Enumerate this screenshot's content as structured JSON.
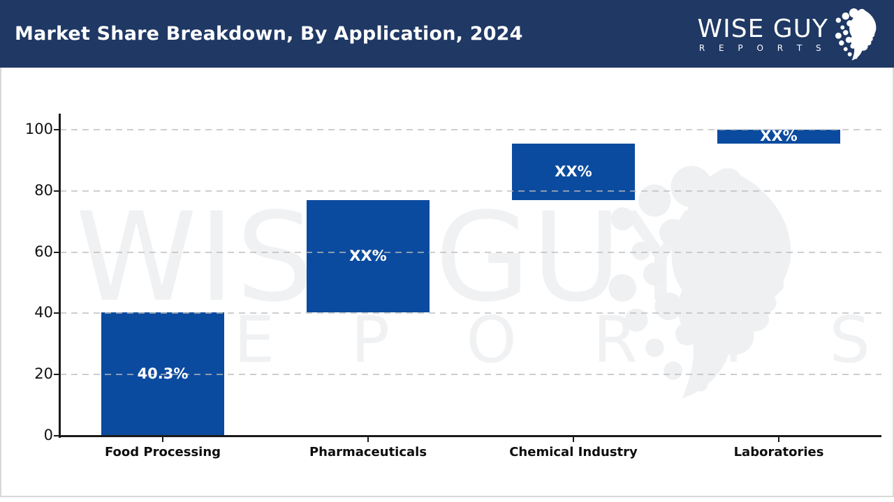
{
  "header": {
    "title": "Market Share Breakdown, By Application, 2024",
    "bg_color": "#1f3864",
    "logo": {
      "line1": "WISE GUY",
      "line2": "R E P O R T S",
      "icon": "head-profile-dots-icon"
    }
  },
  "watermark": {
    "line1": "WISE GUY",
    "line2": "R E P O R T S",
    "icon": "head-profile-dots-icon",
    "color": "#f0f1f3"
  },
  "chart_data": {
    "type": "bar",
    "subtype": "waterfall",
    "title": "Market Share Breakdown, By Application, 2024",
    "categories": [
      "Food Processing",
      "Pharmaceuticals",
      "Chemical Industry",
      "Laboratories"
    ],
    "segments": [
      {
        "category": "Food Processing",
        "start": 0,
        "end": 40.3,
        "value": 40.3,
        "label": "40.3%"
      },
      {
        "category": "Pharmaceuticals",
        "start": 40.3,
        "end": 76.9,
        "value": 36.6,
        "label": "XX%"
      },
      {
        "category": "Chemical Industry",
        "start": 76.9,
        "end": 95.4,
        "value": 18.5,
        "label": "XX%"
      },
      {
        "category": "Laboratories",
        "start": 95.4,
        "end": 100,
        "value": 4.6,
        "label": "XX%"
      }
    ],
    "yticks": [
      0,
      20,
      40,
      60,
      80,
      100
    ],
    "ylim": [
      0,
      105
    ],
    "xlabel": "",
    "ylabel": "",
    "grid": "dashed-horizontal",
    "legend": null,
    "bar_color": "#0b4b9f",
    "gridline_color": "#dddddd",
    "axis_color": "#1a1a1a"
  }
}
